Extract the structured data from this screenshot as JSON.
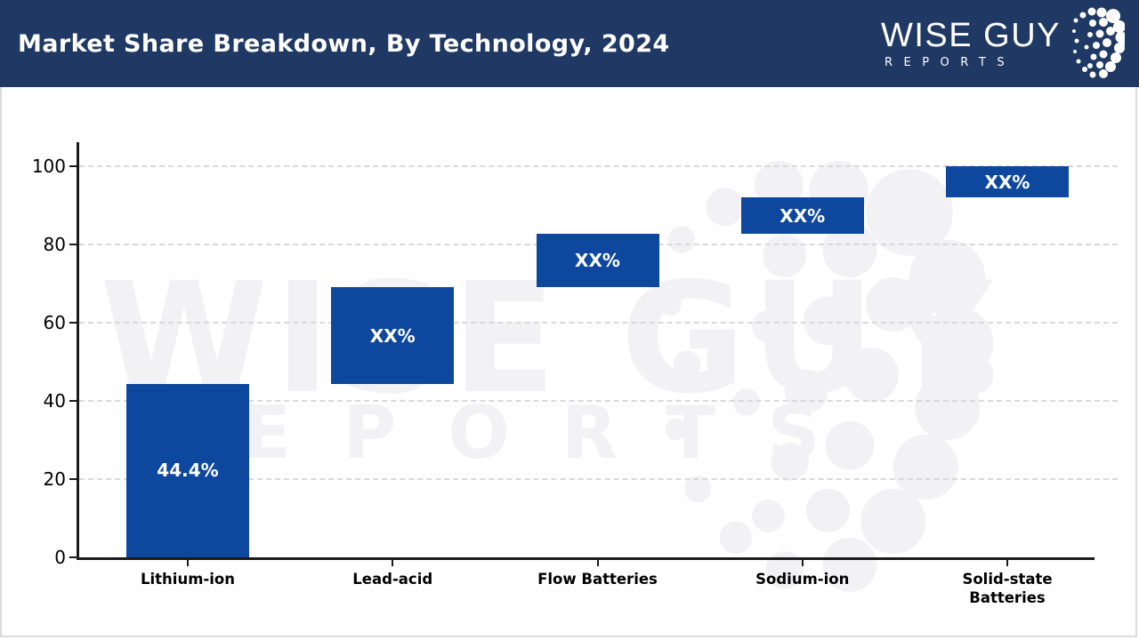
{
  "header": {
    "title": "Market Share Breakdown, By Technology, 2024",
    "logo": {
      "line1": "WISE GUY",
      "line2": "REPORTS"
    }
  },
  "watermark": {
    "line1": "WISE GUY",
    "line2": "REPORTS"
  },
  "colors": {
    "header_bg": "#203864",
    "bar": "#0d489e",
    "bar_label": "#ffffff",
    "grid": "#d9d9d9",
    "axis": "#1a1a1a",
    "watermark": "#f2f2f4",
    "frame": "#dcdcdc"
  },
  "chart_data": {
    "type": "bar",
    "subtype": "waterfall",
    "title": "Market Share Breakdown, By Technology, 2024",
    "categories": [
      "Lithium-ion",
      "Lead-acid",
      "Flow Batteries",
      "Sodium-ion",
      "Solid-state Batteries"
    ],
    "segments": [
      {
        "category": "Lithium-ion",
        "start": 0.0,
        "end": 44.4,
        "value": 44.4,
        "label": "44.4%"
      },
      {
        "category": "Lead-acid",
        "start": 44.4,
        "end": 69.0,
        "value": 24.6,
        "label": "XX%"
      },
      {
        "category": "Flow Batteries",
        "start": 69.0,
        "end": 82.7,
        "value": 13.7,
        "label": "XX%"
      },
      {
        "category": "Sodium-ion",
        "start": 82.7,
        "end": 92.0,
        "value": 9.3,
        "label": "XX%"
      },
      {
        "category": "Solid-state Batteries",
        "start": 92.0,
        "end": 100.0,
        "value": 8.0,
        "label": "XX%"
      }
    ],
    "ylim": [
      0,
      100
    ],
    "yticks": [
      0,
      20,
      40,
      60,
      80,
      100
    ],
    "xlabel": "",
    "ylabel": "",
    "grid": true,
    "legend": false
  }
}
